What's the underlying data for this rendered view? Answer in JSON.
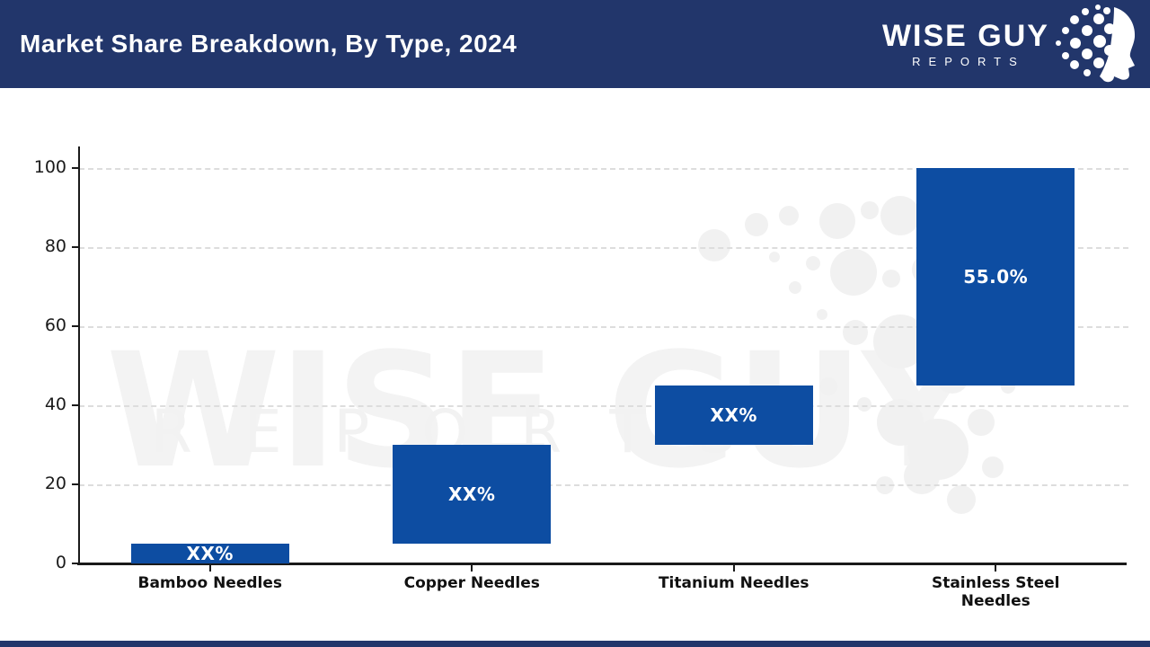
{
  "header": {
    "title": "Market Share Breakdown, By Type, 2024",
    "logo": {
      "line1": "WISE GUY",
      "line2": "REPORTS"
    }
  },
  "watermark": {
    "line1": "WISE GUY",
    "line2": "REPORTS"
  },
  "chart_data": {
    "type": "bar",
    "variant": "floating-segment (waterfall-style) vertical bars",
    "title": "Market Share Breakdown, By Type, 2024",
    "xlabel": "",
    "ylabel": "",
    "categories": [
      "Bamboo Needles",
      "Copper Needles",
      "Titanium Needles",
      "Stainless Steel Needles"
    ],
    "segments": [
      {
        "category": "Bamboo Needles",
        "start": 0,
        "end": 5,
        "label": "XX%"
      },
      {
        "category": "Copper Needles",
        "start": 5,
        "end": 30,
        "label": "XX%"
      },
      {
        "category": "Titanium Needles",
        "start": 30,
        "end": 45,
        "label": "XX%"
      },
      {
        "category": "Stainless Steel Needles",
        "start": 45,
        "end": 100,
        "label": "55.0%"
      }
    ],
    "yticks": [
      0,
      20,
      40,
      60,
      80,
      100
    ],
    "ylim": [
      0,
      105.5
    ],
    "grid": {
      "show": true,
      "style": "dashed",
      "color": "#dddddd",
      "orientation": "horizontal"
    },
    "legend": "none",
    "bar_color": "#0d4da2",
    "bar_label_color": "#ffffff",
    "header_color": "#22366b"
  }
}
